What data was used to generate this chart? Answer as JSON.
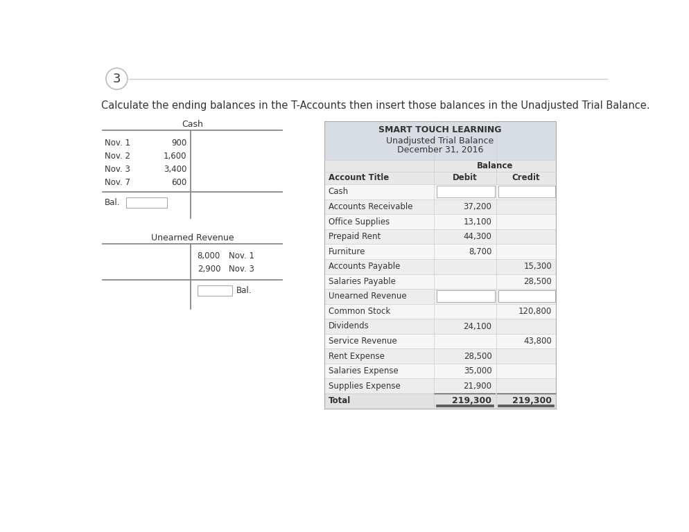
{
  "bg_color": "#ffffff",
  "step_number": "3",
  "instruction": "Calculate the ending balances in the T-Accounts then insert those balances in the Unadjusted Trial Balance.",
  "cash_title": "Cash",
  "cash_debits": [
    {
      "label": "Nov. 1",
      "value": "900"
    },
    {
      "label": "Nov. 2",
      "value": "1,600"
    },
    {
      "label": "Nov. 3",
      "value": "3,400"
    },
    {
      "label": "Nov. 7",
      "value": "600"
    }
  ],
  "cash_bal_label": "Bal.",
  "unearned_title": "Unearned Revenue",
  "unearned_credits": [
    {
      "label": "Nov. 1",
      "value": "8,000"
    },
    {
      "label": "Nov. 3",
      "value": "2,900"
    }
  ],
  "unearned_bal_label": "Bal.",
  "table_header1": "SMART TOUCH LEARNING",
  "table_header2": "Unadjusted Trial Balance",
  "table_header3": "December 31, 2016",
  "col_balance": "Balance",
  "col_account": "Account Title",
  "col_debit": "Debit",
  "col_credit": "Credit",
  "table_rows": [
    {
      "account": "Cash",
      "debit": "",
      "credit": "",
      "input_debit": true,
      "input_credit": true
    },
    {
      "account": "Accounts Receivable",
      "debit": "37,200",
      "credit": "",
      "input_debit": false,
      "input_credit": false
    },
    {
      "account": "Office Supplies",
      "debit": "13,100",
      "credit": "",
      "input_debit": false,
      "input_credit": false
    },
    {
      "account": "Prepaid Rent",
      "debit": "44,300",
      "credit": "",
      "input_debit": false,
      "input_credit": false
    },
    {
      "account": "Furniture",
      "debit": "8,700",
      "credit": "",
      "input_debit": false,
      "input_credit": false
    },
    {
      "account": "Accounts Payable",
      "debit": "",
      "credit": "15,300",
      "input_debit": false,
      "input_credit": false
    },
    {
      "account": "Salaries Payable",
      "debit": "",
      "credit": "28,500",
      "input_debit": false,
      "input_credit": false
    },
    {
      "account": "Unearned Revenue",
      "debit": "",
      "credit": "",
      "input_debit": true,
      "input_credit": true
    },
    {
      "account": "Common Stock",
      "debit": "",
      "credit": "120,800",
      "input_debit": false,
      "input_credit": false
    },
    {
      "account": "Dividends",
      "debit": "24,100",
      "credit": "",
      "input_debit": false,
      "input_credit": false
    },
    {
      "account": "Service Revenue",
      "debit": "",
      "credit": "43,800",
      "input_debit": false,
      "input_credit": false
    },
    {
      "account": "Rent Expense",
      "debit": "28,500",
      "credit": "",
      "input_debit": false,
      "input_credit": false
    },
    {
      "account": "Salaries Expense",
      "debit": "35,000",
      "credit": "",
      "input_debit": false,
      "input_credit": false
    },
    {
      "account": "Supplies Expense",
      "debit": "21,900",
      "credit": "",
      "input_debit": false,
      "input_credit": false
    }
  ],
  "total_label": "Total",
  "total_debit": "219,300",
  "total_credit": "219,300",
  "table_header_bg": "#d8dde3",
  "table_row_bg_odd": "#f7f7f7",
  "table_row_bg_even": "#ededee",
  "table_total_bg": "#e2e2e2",
  "input_box_color": "#ffffff",
  "input_box_border": "#aaaaaa",
  "text_color": "#333333",
  "light_line": "#cccccc",
  "dark_line": "#888888"
}
